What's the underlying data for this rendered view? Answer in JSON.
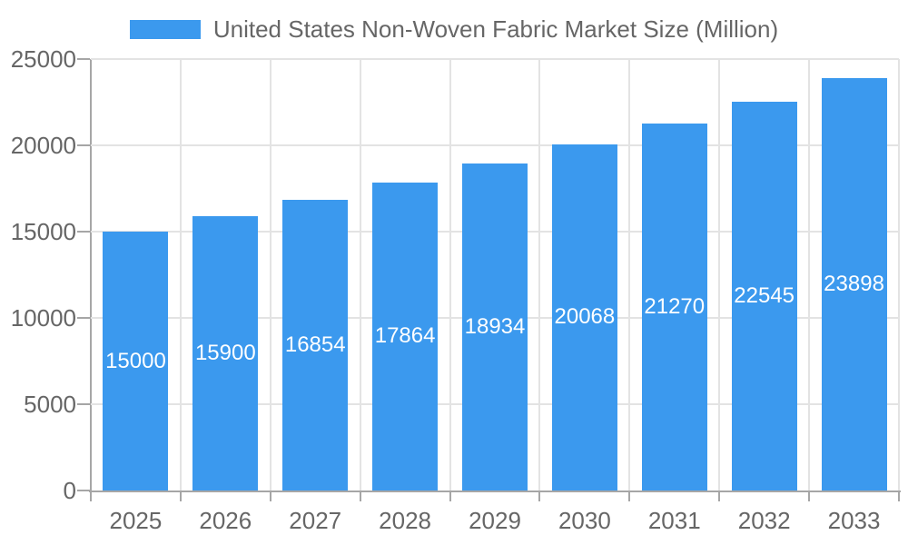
{
  "chart_data": {
    "type": "bar",
    "legend_label": "United States Non-Woven Fabric Market Size (Million)",
    "categories": [
      "2025",
      "2026",
      "2027",
      "2028",
      "2029",
      "2030",
      "2031",
      "2032",
      "2033"
    ],
    "values": [
      15000,
      15900,
      16854,
      17864,
      18934,
      20068,
      21270,
      22545,
      23898
    ],
    "yticks": [
      0,
      5000,
      10000,
      15000,
      20000,
      25000
    ],
    "ylim": [
      0,
      25000
    ],
    "xlabel": "",
    "ylabel": "",
    "grid": true,
    "legend_position": "top",
    "colors": {
      "bar": "#3b99ee",
      "bar_value_text": "#ffffff",
      "axis_text": "#666666",
      "axis_line": "#a6a6a6",
      "gridline": "#e3e3e3",
      "background": "#ffffff"
    }
  }
}
